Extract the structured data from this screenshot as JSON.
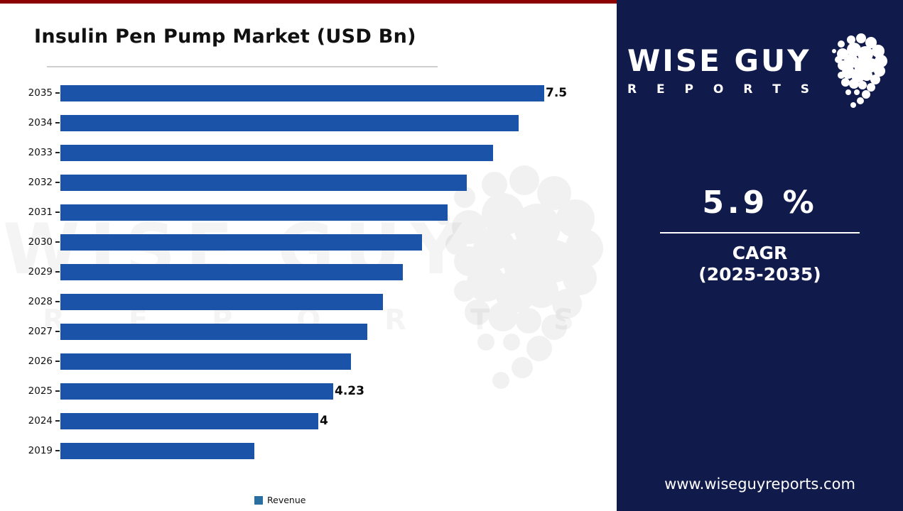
{
  "title": "Insulin Pen Pump Market (USD Bn)",
  "legend": {
    "revenue_label": "Revenue"
  },
  "chart_data": {
    "type": "bar",
    "orientation": "horizontal",
    "title": "Insulin Pen Pump Market (USD Bn)",
    "categories": [
      "2035",
      "2034",
      "2033",
      "2032",
      "2031",
      "2030",
      "2029",
      "2028",
      "2027",
      "2026",
      "2025",
      "2024",
      "2019"
    ],
    "values": [
      7.5,
      7.1,
      6.7,
      6.3,
      6.0,
      5.6,
      5.3,
      5.0,
      4.75,
      4.5,
      4.23,
      4.0,
      3.0
    ],
    "data_labels": [
      "7.5",
      "",
      "",
      "",
      "",
      "",
      "",
      "",
      "",
      "",
      "4.23",
      "4",
      ""
    ],
    "xlim": [
      0,
      8.2
    ],
    "grid": false,
    "legend_entries": [
      "Revenue"
    ],
    "legend_position": "bottom",
    "bar_color": "#1a53a8",
    "legend_color": "#2a6f9f"
  },
  "side_panel": {
    "brand_line1": "WISE GUY",
    "brand_line2": "R E P O R T S",
    "cagr_value": "5.9 %",
    "cagr_label_line1": "CAGR",
    "cagr_label_line2": "(2025-2035)",
    "website": "www.wiseguyreports.com",
    "bg_color": "#101a4b"
  },
  "colors": {
    "top_strip": "#8b0000",
    "bar_blue": "#1a53a8",
    "panel_navy": "#101a4b",
    "title_text": "#111111",
    "divider_gray": "#cfcfcf"
  },
  "watermark": {
    "line1": "WISE GUY",
    "line2": "R E P O R T S"
  }
}
